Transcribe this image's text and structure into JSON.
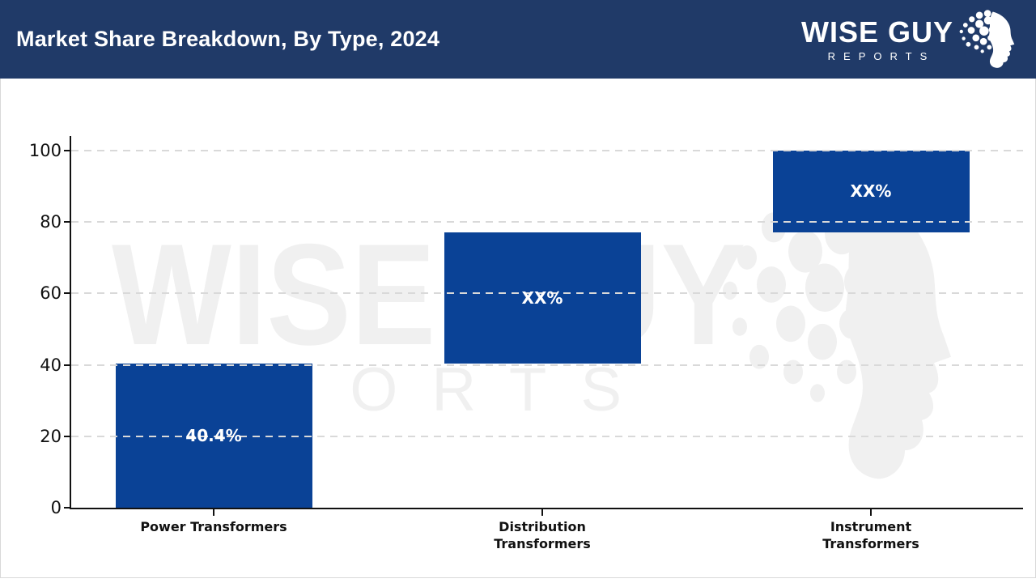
{
  "header": {
    "title": "Market Share Breakdown, By Type, 2024",
    "logo": {
      "line1": "WISE GUY",
      "line2": "REPORTS"
    }
  },
  "watermark": {
    "line1": "WISE GUY",
    "line2": "REPORTS"
  },
  "colors": {
    "header_bg": "#203A68",
    "bar": "#0A4296",
    "grid": "#D9D9D9",
    "axis": "#111111",
    "bar_label": "#FFFFFF",
    "watermark": "#F0F0F0"
  },
  "chart_data": {
    "type": "bar",
    "subtype": "waterfall",
    "title": "Market Share Breakdown, By Type, 2024",
    "xlabel": "",
    "ylabel": "",
    "ylim": [
      0,
      100
    ],
    "yticks": [
      0,
      20,
      40,
      60,
      80,
      100
    ],
    "grid": "horizontal-dashed",
    "legend": "none",
    "categories": [
      "Power Transformers",
      "Distribution Transformers",
      "Instrument Transformers"
    ],
    "bars": [
      {
        "category": "Power Transformers",
        "category_lines": [
          "Power Transformers"
        ],
        "start": 0,
        "end": 40.4,
        "value": 40.4,
        "label": "40.4%"
      },
      {
        "category": "Distribution Transformers",
        "category_lines": [
          "Distribution",
          "Transformers"
        ],
        "start": 40.4,
        "end": 77.1,
        "value": 36.7,
        "label": "XX%"
      },
      {
        "category": "Instrument Transformers",
        "category_lines": [
          "Instrument",
          "Transformers"
        ],
        "start": 77.1,
        "end": 100,
        "value": 22.9,
        "label": "XX%"
      }
    ]
  }
}
